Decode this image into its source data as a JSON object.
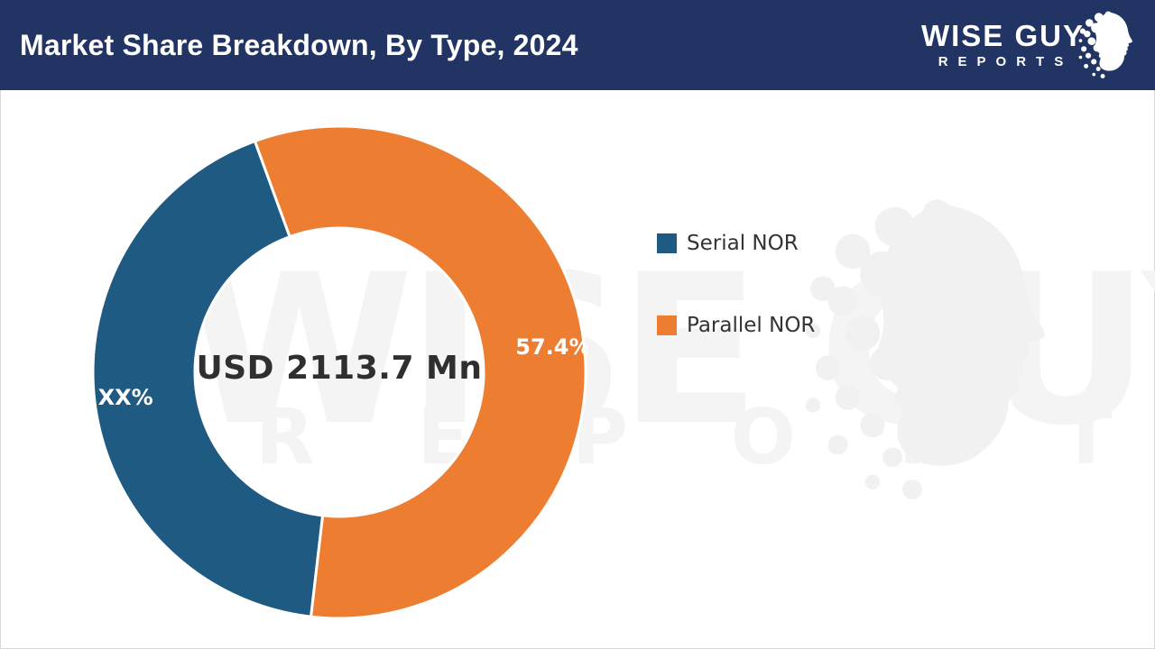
{
  "header": {
    "title": "Market Share Breakdown, By Type, 2024",
    "logo": {
      "line1": "WISE GUY",
      "line2": "REPORTS"
    }
  },
  "chart_data": {
    "type": "pie",
    "subtype": "donut",
    "title": "Market Share Breakdown, By Type, 2024",
    "center_label": "USD 2113.7 Mn",
    "hole_ratio": 0.585,
    "start_angle_clockwise_from_top_deg": 186.6,
    "segments": [
      {
        "name": "Serial NOR",
        "value_pct": 42.6,
        "display_label": "XX%",
        "color": "#1F5A83"
      },
      {
        "name": "Parallel NOR",
        "value_pct": 57.4,
        "display_label": "57.4%",
        "color": "#ED7D31"
      }
    ],
    "legend_position": "right",
    "grid": false
  },
  "legend": {
    "items": [
      {
        "label": "Serial NOR",
        "color": "#1F5A83"
      },
      {
        "label": "Parallel NOR",
        "color": "#ED7D31"
      }
    ]
  },
  "watermark": {
    "line1": "WISE GUY",
    "line2": "R E P O R T S"
  },
  "colors": {
    "header_bg": "#213463",
    "serial_blue": "#1F5A83",
    "parallel_orange": "#ED7D31",
    "center_text": "#2f2f2f",
    "legend_text": "#333333",
    "canvas_border": "#d9d9d9",
    "watermark_gray": "#f4f4f4"
  }
}
